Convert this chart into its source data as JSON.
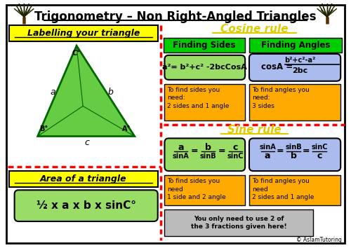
{
  "title": "Trigonometry – Non Right-Angled Triangles",
  "bg_color": "#ffffff",
  "border_color": "#000000",
  "dashed_color": "#ff0000",
  "yellow_bg": "#ffff00",
  "green_bg": "#00cc00",
  "light_green_bg": "#99dd66",
  "blue_bg": "#aabbee",
  "orange_bg": "#ffaa00",
  "gray_bg": "#bbbbbb",
  "triangle_fill": "#66cc44",
  "triangle_outline": "#006600",
  "label_triangle": "Labelling your triangle",
  "label_area": "Area of a triangle",
  "label_cosine": "Cosine rule",
  "label_sine": "Sine rule",
  "label_finding_sides": "Finding Sides",
  "label_finding_angles": "Finding Angles",
  "formula_area": "½ x a x b x sinC°",
  "formula_cosine_side": "a²= b²+c² -2bcCosA",
  "cosine_angle_num": "b²+c²-a²",
  "cosine_angle_den": "2bc",
  "cosine_angle_pre": "cosA =",
  "note_text": "You only need to use 2 of\nthe 3 fractions given here!",
  "credit": "© AslamTutoring",
  "to_find_sides_cosine": "To find sides you\nneed:\n2 sides and 1 angle",
  "to_find_angles_cosine": "To find angles you\nneed:\n3 sides",
  "to_find_sides_sine": "To find sides you\nneed\n1 side and 2 angle",
  "to_find_angles_sine": "To find angles you\nneed\n2 sides and 1 angle"
}
